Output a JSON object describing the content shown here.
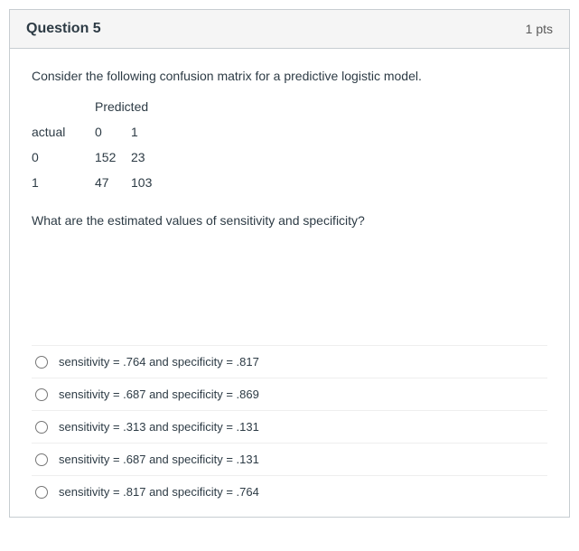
{
  "header": {
    "title": "Question 5",
    "points": "1 pts"
  },
  "body": {
    "prompt": "Consider the following confusion matrix for a predictive logistic model.",
    "matrix": {
      "predicted_label": "Predicted",
      "actual_label": "actual",
      "col0": "0",
      "col1": "1",
      "row0_label": "0",
      "row0_c0": "152",
      "row0_c1": "23",
      "row1_label": "1",
      "row1_c0": "47",
      "row1_c1": "103"
    },
    "followup": "What are the estimated values of sensitivity and specificity?"
  },
  "answers": [
    {
      "text": "sensitivity = .764 and specificity = .817"
    },
    {
      "text": "sensitivity = .687 and specificity = .869"
    },
    {
      "text": "sensitivity = .313 and specificity = .131"
    },
    {
      "text": "sensitivity = .687 and specificity = .131"
    },
    {
      "text": "sensitivity = .817 and specificity = .764"
    }
  ],
  "colors": {
    "border": "#c7cdd1",
    "header_bg": "#f5f5f5",
    "text": "#2d3b45",
    "points_text": "#595959",
    "answer_divider": "#eeeeee",
    "background": "#ffffff"
  },
  "typography": {
    "title_fontsize": 16,
    "title_weight": "bold",
    "body_fontsize": 14,
    "answer_fontsize": 13
  }
}
